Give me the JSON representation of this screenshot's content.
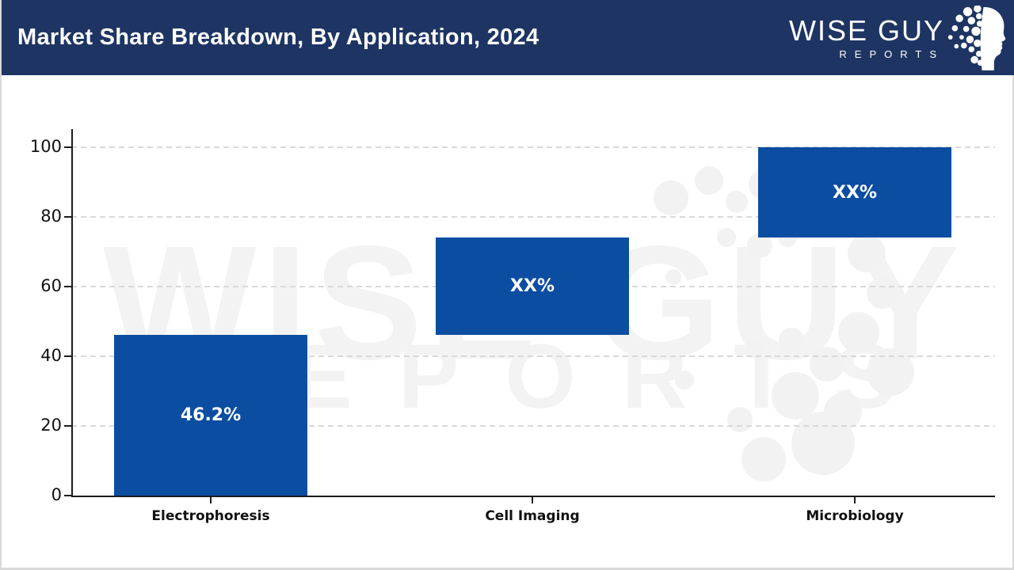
{
  "header": {
    "title": "Market Share Breakdown, By Application, 2024",
    "logo": {
      "line1": "WISE GUY",
      "line2": "REPORTS"
    }
  },
  "watermark": {
    "line1": "WISE GUY",
    "line2": "REPORTS"
  },
  "chart_data": {
    "type": "bar",
    "subtype": "waterfall",
    "title": "Market Share Breakdown, By Application, 2024",
    "categories": [
      "Electrophoresis",
      "Cell Imaging",
      "Microbiology"
    ],
    "series": [
      {
        "name": "Market Share",
        "segments": [
          {
            "category": "Electrophoresis",
            "start": 0,
            "end": 46.2,
            "label": "46.2%"
          },
          {
            "category": "Cell Imaging",
            "start": 46.2,
            "end": 74,
            "label": "XX%"
          },
          {
            "category": "Microbiology",
            "start": 74,
            "end": 100,
            "label": "XX%"
          }
        ]
      }
    ],
    "xlabel": "",
    "ylabel": "",
    "ylim": [
      0,
      100
    ],
    "yticks": [
      0,
      20,
      40,
      60,
      80,
      100
    ],
    "grid": "horizontal-dashed",
    "legend": "none",
    "bar_color": "#0b4da1",
    "bar_label_color": "#ffffff"
  },
  "colors": {
    "header_bg": "#1e3563",
    "bar": "#0b4da1",
    "axis": "#1c1c1c",
    "grid": "#d9d9d9",
    "watermark": "#f3f3f3",
    "page_border": "#d9d9d9"
  }
}
